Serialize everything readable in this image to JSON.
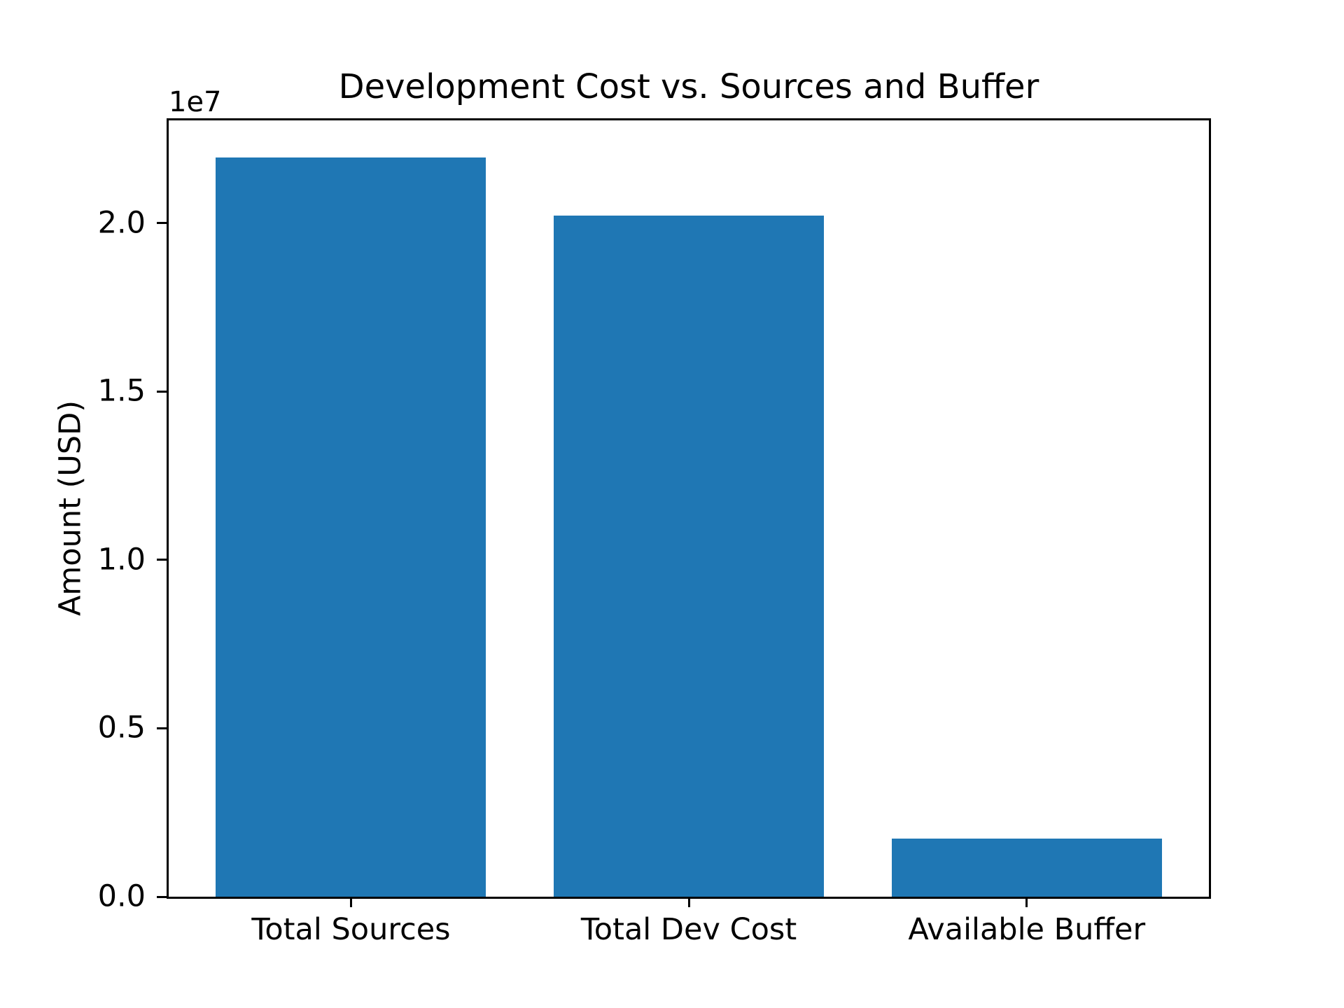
{
  "figure": {
    "background": "#ffffff"
  },
  "chart_data": {
    "type": "bar",
    "title": "Development Cost vs. Sources and Buffer",
    "categories": [
      "Total Sources",
      "Total Dev Cost",
      "Available Buffer"
    ],
    "values": [
      21950000,
      20225000,
      1725000
    ],
    "xlabel": "",
    "ylabel": "Amount (USD)",
    "ylim": [
      0,
      23050000
    ],
    "yticks": [
      0,
      5000000,
      10000000,
      15000000,
      20000000
    ],
    "ytick_labels": [
      "0.0",
      "0.5",
      "1.0",
      "1.5",
      "2.0"
    ],
    "y_offset_text": "1e7",
    "bar_color": "#1f77b4",
    "axis_color": "#000000",
    "grid": false,
    "legend": null
  }
}
